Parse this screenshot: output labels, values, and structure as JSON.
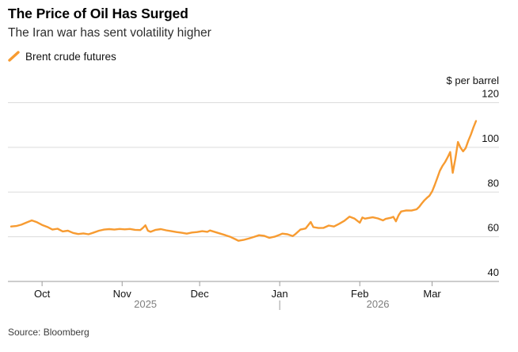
{
  "footer": {
    "source": "Source: Bloomberg"
  },
  "chart_data": {
    "type": "line",
    "title": "The Price of Oil Has Surged",
    "subtitle": "The Iran war has sent volatility higher",
    "ylabel": "$ per barrel",
    "xlabel": "",
    "ylim": [
      40,
      120
    ],
    "yticks": [
      40,
      60,
      80,
      100,
      120
    ],
    "grid": "horizontal",
    "legend_position": "top-left",
    "axis_label_position": "right",
    "xticks": [
      {
        "date": "2025-10-01",
        "label": "Oct"
      },
      {
        "date": "2025-11-01",
        "label": "Nov"
      },
      {
        "date": "2025-12-01",
        "label": "Dec"
      },
      {
        "date": "2026-01-01",
        "label": "Jan"
      },
      {
        "date": "2026-02-01",
        "label": "Feb"
      },
      {
        "date": "2026-03-01",
        "label": "Mar"
      }
    ],
    "year_divider": "2026-01-01",
    "year_labels": [
      {
        "label": "2025",
        "from": "2025-09-19",
        "to": "2026-01-01"
      },
      {
        "label": "2026",
        "from": "2026-01-01",
        "to": "2026-03-18"
      }
    ],
    "series": [
      {
        "name": "Brent crude futures",
        "color": "#F79B31",
        "points": [
          [
            "2025-09-19",
            64.6
          ],
          [
            "2025-09-21",
            64.8
          ],
          [
            "2025-09-23",
            65.4
          ],
          [
            "2025-09-25",
            66.4
          ],
          [
            "2025-09-27",
            67.3
          ],
          [
            "2025-09-29",
            66.5
          ],
          [
            "2025-10-01",
            65.3
          ],
          [
            "2025-10-03",
            64.4
          ],
          [
            "2025-10-05",
            63.2
          ],
          [
            "2025-10-07",
            63.6
          ],
          [
            "2025-10-09",
            62.4
          ],
          [
            "2025-10-11",
            62.7
          ],
          [
            "2025-10-13",
            61.7
          ],
          [
            "2025-10-15",
            61.2
          ],
          [
            "2025-10-17",
            61.5
          ],
          [
            "2025-10-19",
            61.1
          ],
          [
            "2025-10-21",
            61.9
          ],
          [
            "2025-10-23",
            62.7
          ],
          [
            "2025-10-25",
            63.2
          ],
          [
            "2025-10-27",
            63.4
          ],
          [
            "2025-10-29",
            63.2
          ],
          [
            "2025-10-31",
            63.5
          ],
          [
            "2025-11-02",
            63.3
          ],
          [
            "2025-11-04",
            63.5
          ],
          [
            "2025-11-06",
            63.1
          ],
          [
            "2025-11-08",
            63.0
          ],
          [
            "2025-11-09",
            63.9
          ],
          [
            "2025-11-10",
            65.1
          ],
          [
            "2025-11-11",
            62.7
          ],
          [
            "2025-11-12",
            62.2
          ],
          [
            "2025-11-14",
            63.1
          ],
          [
            "2025-11-16",
            63.4
          ],
          [
            "2025-11-18",
            62.9
          ],
          [
            "2025-11-20",
            62.5
          ],
          [
            "2025-11-22",
            62.1
          ],
          [
            "2025-11-24",
            61.8
          ],
          [
            "2025-11-26",
            61.4
          ],
          [
            "2025-11-28",
            61.9
          ],
          [
            "2025-11-30",
            62.1
          ],
          [
            "2025-12-02",
            62.5
          ],
          [
            "2025-12-04",
            62.2
          ],
          [
            "2025-12-05",
            62.8
          ],
          [
            "2025-12-07",
            62.1
          ],
          [
            "2025-12-09",
            61.4
          ],
          [
            "2025-12-11",
            60.7
          ],
          [
            "2025-12-13",
            59.9
          ],
          [
            "2025-12-15",
            58.8
          ],
          [
            "2025-12-16",
            58.2
          ],
          [
            "2025-12-18",
            58.6
          ],
          [
            "2025-12-20",
            59.2
          ],
          [
            "2025-12-22",
            59.9
          ],
          [
            "2025-12-24",
            60.7
          ],
          [
            "2025-12-26",
            60.4
          ],
          [
            "2025-12-28",
            59.5
          ],
          [
            "2025-12-30",
            60.0
          ],
          [
            "2026-01-01",
            60.9
          ],
          [
            "2026-01-02",
            61.4
          ],
          [
            "2026-01-04",
            61.1
          ],
          [
            "2026-01-06",
            60.3
          ],
          [
            "2026-01-07",
            61.1
          ],
          [
            "2026-01-09",
            63.2
          ],
          [
            "2026-01-11",
            63.7
          ],
          [
            "2026-01-13",
            66.6
          ],
          [
            "2026-01-14",
            64.3
          ],
          [
            "2026-01-16",
            63.9
          ],
          [
            "2026-01-18",
            64.0
          ],
          [
            "2026-01-20",
            65.0
          ],
          [
            "2026-01-22",
            64.6
          ],
          [
            "2026-01-24",
            65.8
          ],
          [
            "2026-01-26",
            67.1
          ],
          [
            "2026-01-28",
            69.0
          ],
          [
            "2026-01-30",
            68.1
          ],
          [
            "2026-02-01",
            66.3
          ],
          [
            "2026-02-02",
            68.6
          ],
          [
            "2026-02-03",
            68.1
          ],
          [
            "2026-02-04",
            68.3
          ],
          [
            "2026-02-06",
            68.7
          ],
          [
            "2026-02-08",
            68.2
          ],
          [
            "2026-02-10",
            67.3
          ],
          [
            "2026-02-11",
            68.0
          ],
          [
            "2026-02-13",
            68.5
          ],
          [
            "2026-02-14",
            68.9
          ],
          [
            "2026-02-15",
            66.9
          ],
          [
            "2026-02-16",
            69.6
          ],
          [
            "2026-02-17",
            71.3
          ],
          [
            "2026-02-19",
            71.8
          ],
          [
            "2026-02-21",
            71.7
          ],
          [
            "2026-02-23",
            72.3
          ],
          [
            "2026-02-24",
            73.4
          ],
          [
            "2026-02-25",
            74.9
          ],
          [
            "2026-02-26",
            76.3
          ],
          [
            "2026-02-27",
            77.4
          ],
          [
            "2026-02-28",
            78.4
          ],
          [
            "2026-03-01",
            80.3
          ],
          [
            "2026-03-02",
            83.1
          ],
          [
            "2026-03-03",
            86.3
          ],
          [
            "2026-03-04",
            89.5
          ],
          [
            "2026-03-05",
            91.7
          ],
          [
            "2026-03-06",
            93.4
          ],
          [
            "2026-03-07",
            95.5
          ],
          [
            "2026-03-08",
            97.9
          ],
          [
            "2026-03-09",
            88.6
          ],
          [
            "2026-03-10",
            94.9
          ],
          [
            "2026-03-11",
            102.4
          ],
          [
            "2026-03-12",
            99.9
          ],
          [
            "2026-03-13",
            98.2
          ],
          [
            "2026-03-14",
            99.7
          ],
          [
            "2026-03-15",
            102.9
          ],
          [
            "2026-03-16",
            105.7
          ],
          [
            "2026-03-17",
            108.9
          ],
          [
            "2026-03-18",
            111.8
          ]
        ]
      }
    ]
  }
}
